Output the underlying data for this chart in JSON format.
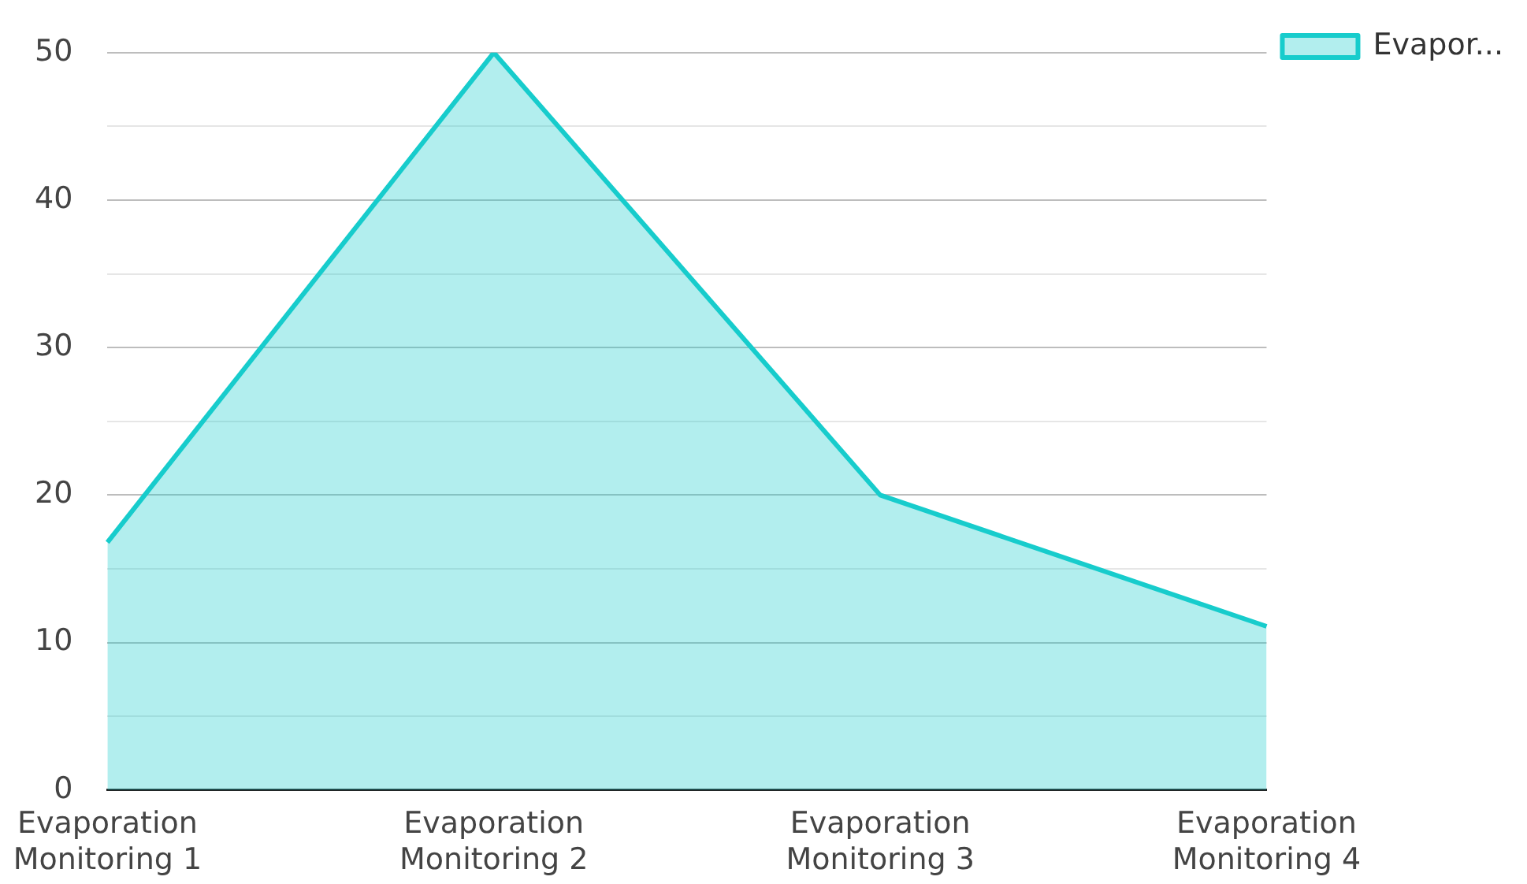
{
  "chart_data": {
    "type": "area",
    "categories": [
      "Evaporation Monitoring 1",
      "Evaporation Monitoring 2",
      "Evaporation Monitoring 3",
      "Evaporation Monitoring 4"
    ],
    "series": [
      {
        "name": "Evapor...",
        "color": "#17cccc",
        "values": [
          16.8,
          50,
          20,
          11.1
        ]
      }
    ],
    "ylim": [
      0,
      50
    ],
    "yticks": [
      0,
      {
        "value": 5,
        "label": null
      },
      10,
      {
        "value": 15,
        "label": null
      },
      20,
      {
        "value": 25,
        "label": null
      },
      30,
      {
        "value": 35,
        "label": null
      },
      40,
      {
        "value": 45,
        "label": null
      },
      50
    ],
    "grid": "y",
    "legend": "top right"
  }
}
